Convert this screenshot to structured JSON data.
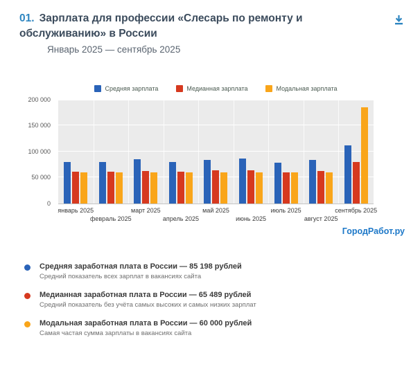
{
  "header": {
    "number": "01.",
    "title": "Зарплата для профессии «Слесарь по ремонту и обслуживанию» в России",
    "subtitle": "Январь 2025 — сентябрь 2025"
  },
  "chart_data": {
    "type": "bar",
    "title": "Зарплата для профессии «Слесарь по ремонту и обслуживанию» в России, январь 2025 — сентябрь 2025",
    "categories": [
      "январь 2025",
      "февраль 2025",
      "март 2025",
      "апрель 2025",
      "май 2025",
      "июнь 2025",
      "июль 2025",
      "август 2025",
      "сентябрь 2025"
    ],
    "series": [
      {
        "name": "Средняя зарплата",
        "color": "#2a63b8",
        "values": [
          80500,
          79500,
          85000,
          80500,
          83500,
          86000,
          78500,
          84000,
          112000
        ]
      },
      {
        "name": "Медианная зарплата",
        "color": "#d6391f",
        "values": [
          61000,
          61000,
          62500,
          61000,
          63500,
          64000,
          60000,
          62500,
          80000
        ]
      },
      {
        "name": "Модальная зарплата",
        "color": "#f9a51a",
        "values": [
          60000,
          60000,
          60000,
          60000,
          60000,
          60000,
          60000,
          60000,
          185000
        ]
      }
    ],
    "ylim": [
      0,
      200000
    ],
    "yticks": [
      0,
      50000,
      100000,
      150000,
      200000
    ],
    "ytick_labels": [
      "0",
      "50 000",
      "100 000",
      "150 000",
      "200 000"
    ],
    "grid": true,
    "legend_position": "top"
  },
  "brand": "ГородРабот.ру",
  "stats": [
    {
      "color": "#2a63b8",
      "title": "Средняя заработная плата в России — 85 198 рублей",
      "desc": "Средний показатель всех зарплат в вакансиях сайта"
    },
    {
      "color": "#d6391f",
      "title": "Медианная заработная плата в России — 65 489 рублей",
      "desc": "Средний показатель без учёта самых высоких и самых низких зарплат"
    },
    {
      "color": "#f9a51a",
      "title": "Модальная заработная плата в России — 60 000 рублей",
      "desc": "Самая частая сумма зарплаты в вакансиях сайта"
    }
  ],
  "colors": {
    "accent_blue": "#2e86c1",
    "brand_blue": "#1d78c8",
    "avg": "#2a63b8",
    "median": "#d6391f",
    "modal": "#f9a51a"
  }
}
